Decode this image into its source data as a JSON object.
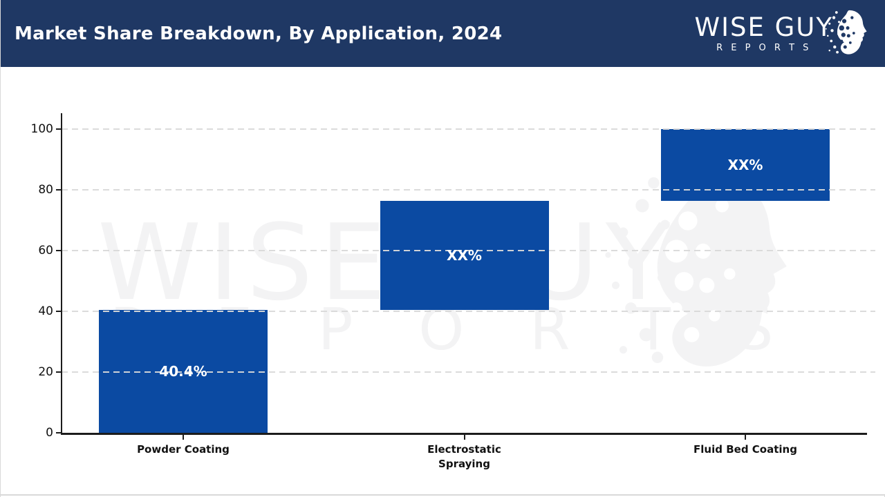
{
  "header": {
    "title": "Market Share Breakdown, By Application, 2024",
    "bg_color": "#1f3864",
    "logo": {
      "line1": "WISE GUY",
      "line2": "R E P O R T S"
    }
  },
  "watermark": {
    "line1": "WISE GUY",
    "line2": "R E P O R T S"
  },
  "chart_data": {
    "type": "bar",
    "subtype": "waterfall",
    "title": "Market Share Breakdown, By Application, 2024",
    "categories": [
      "Powder Coating",
      "Electrostatic\nSpraying",
      "Fluid Bed Coating"
    ],
    "segments": [
      {
        "category": "Powder Coating",
        "start": 0,
        "end": 40.4,
        "label": "40.4%"
      },
      {
        "category": "Electrostatic Spraying",
        "start": 40.4,
        "end": 76.4,
        "label": "XX%"
      },
      {
        "category": "Fluid Bed Coating",
        "start": 76.4,
        "end": 100,
        "label": "XX%"
      }
    ],
    "ylim": [
      0,
      100
    ],
    "yticks": [
      0,
      20,
      40,
      60,
      80,
      100
    ],
    "xlabel": "",
    "ylabel": "",
    "grid": "horizontal-dashed",
    "legend": "none",
    "bar_color": "#0b4aa2",
    "bar_label_color": "#ffffff",
    "grid_color": "#d9d9d9",
    "axis_color": "#1c1c1c"
  }
}
